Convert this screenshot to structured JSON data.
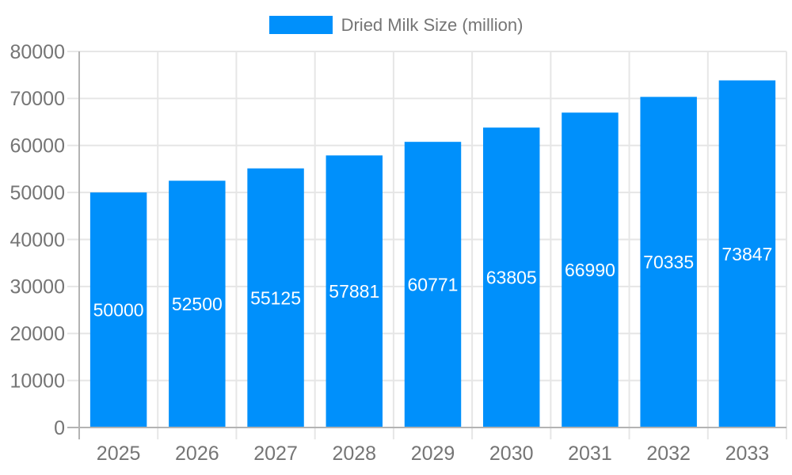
{
  "chart_data": {
    "type": "bar",
    "title": "Dried Milk Size (million)",
    "categories": [
      "2025",
      "2026",
      "2027",
      "2028",
      "2029",
      "2030",
      "2031",
      "2032",
      "2033"
    ],
    "values": [
      50000,
      52500,
      55125,
      57881,
      60771,
      63805,
      66990,
      70335,
      73847
    ],
    "value_labels": [
      "50000",
      "52500",
      "55125",
      "57881",
      "60771",
      "63805",
      "66990",
      "70335",
      "73847"
    ],
    "yticks": [
      0,
      10000,
      20000,
      30000,
      40000,
      50000,
      60000,
      70000,
      80000
    ],
    "ytick_labels": [
      "0",
      "10000",
      "20000",
      "30000",
      "40000",
      "50000",
      "60000",
      "70000",
      "80000"
    ],
    "ylim": [
      0,
      80000
    ],
    "xlabel": "",
    "ylabel": "",
    "grid": true,
    "legend_position": "top-center",
    "colors": {
      "bar": "#0090fb",
      "axis_label": "#757575",
      "legend_text": "#757575",
      "grid_line": "#e6e6e6",
      "axis_line": "#b3b3b3",
      "value_label": "#ffffff",
      "background": "#ffffff"
    }
  }
}
